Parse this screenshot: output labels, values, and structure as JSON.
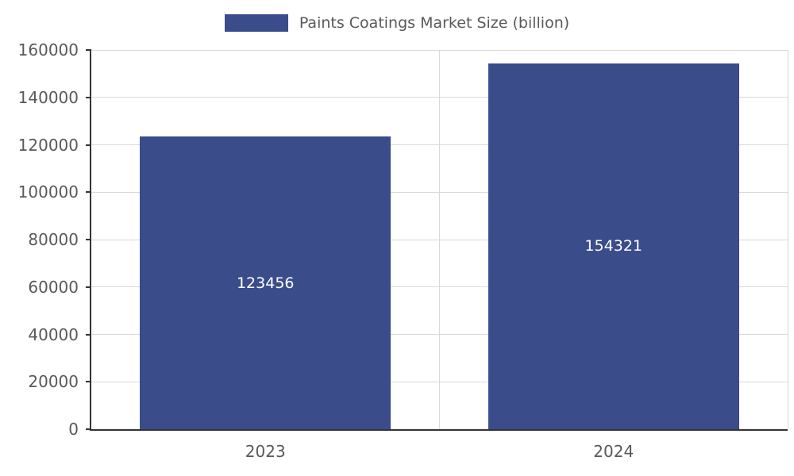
{
  "chart_data": {
    "type": "bar",
    "title": "Paints Coatings Market Size (billion)",
    "categories": [
      "2023",
      "2024"
    ],
    "values": [
      123456,
      154321
    ],
    "series": [
      {
        "name": "Paints Coatings Market Size (billion)",
        "values": [
          123456,
          154321
        ]
      }
    ],
    "xlabel": "",
    "ylabel": "",
    "ylim": [
      0,
      160000
    ],
    "ytick_step": 20000,
    "ytick_labels": [
      "0",
      "20000",
      "40000",
      "60000",
      "80000",
      "100000",
      "120000",
      "140000",
      "160000"
    ],
    "grid": true,
    "legend_position": "top",
    "bar_width_fraction": 0.72,
    "colors": {
      "bar": "#3B4C8A",
      "bar_value_label": "#ffffff",
      "axis_text": "#595959",
      "axis_line": "#333333",
      "gridline": "#d9d9d9",
      "background": "#ffffff"
    }
  }
}
